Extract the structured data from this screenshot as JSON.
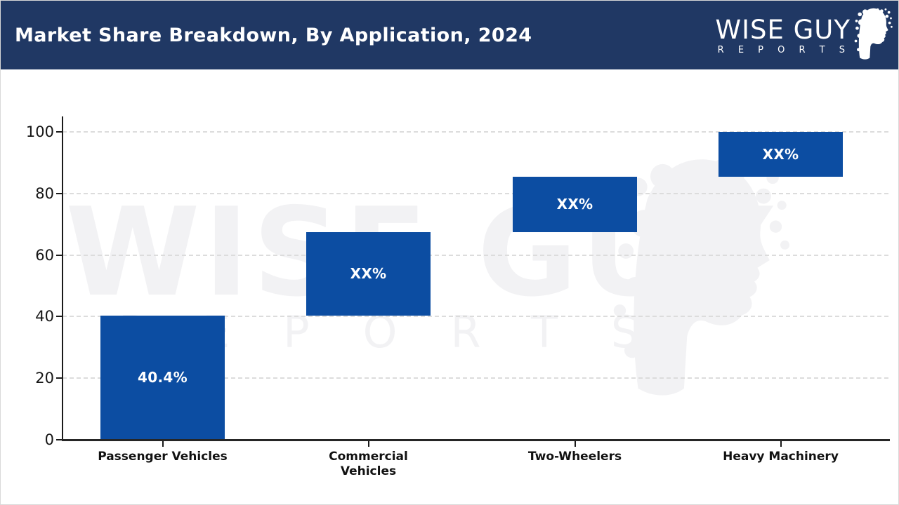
{
  "header": {
    "title": "Market Share Breakdown, By Application, 2024",
    "logo": {
      "name": "WISE GUY",
      "sub": "R E P O R T S"
    }
  },
  "watermark": {
    "text": "WISE GUY",
    "sub": "REPORTS"
  },
  "colors": {
    "header_bg": "#203864",
    "bar": "#0c4da2",
    "bar_label": "#ffffff",
    "gridline": "#dcdcdc",
    "axis": "#1a1a1a",
    "watermark": "#f2f2f4"
  },
  "chart_data": {
    "type": "bar",
    "variant": "waterfall",
    "title": "Market Share Breakdown, By Application, 2024",
    "categories": [
      "Passenger Vehicles",
      "Commercial Vehicles",
      "Two-Wheelers",
      "Heavy Machinery"
    ],
    "categories_display": [
      "Passenger Vehicles",
      "Commercial\nVehicles",
      "Two-Wheelers",
      "Heavy Machinery"
    ],
    "segments": [
      {
        "category": "Passenger Vehicles",
        "start": 0,
        "end": 40.4,
        "label": "40.4%"
      },
      {
        "category": "Commercial Vehicles",
        "start": 40.4,
        "end": 67.5,
        "label": "XX%"
      },
      {
        "category": "Two-Wheelers",
        "start": 67.5,
        "end": 85.5,
        "label": "XX%"
      },
      {
        "category": "Heavy Machinery",
        "start": 85.5,
        "end": 100,
        "label": "XX%"
      }
    ],
    "xlabel": "",
    "ylabel": "",
    "yticks": [
      0,
      20,
      40,
      60,
      80,
      100
    ],
    "ylim": [
      0,
      105
    ],
    "grid": "horizontal-dashed",
    "legend": "none"
  }
}
